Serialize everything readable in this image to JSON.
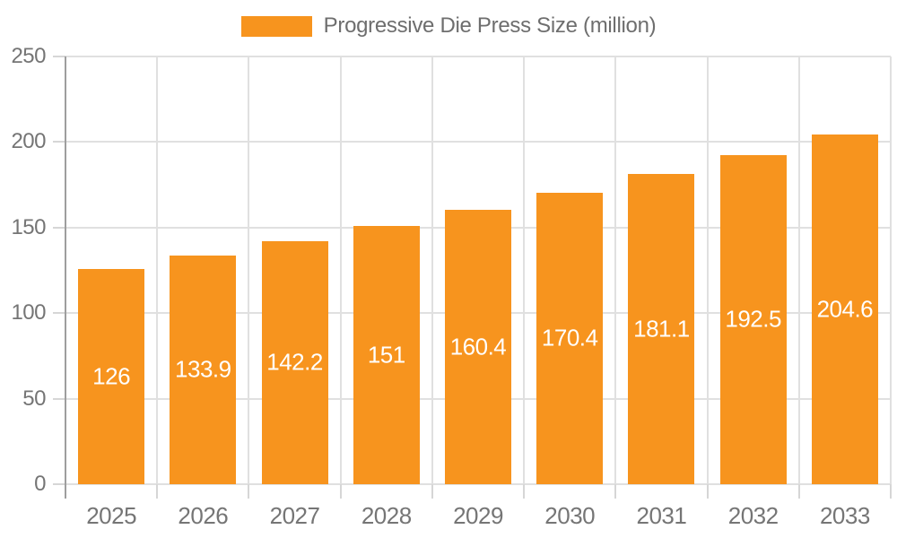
{
  "chart_data": {
    "type": "bar",
    "legend_label": "Progressive Die Press Size (million)",
    "categories": [
      "2025",
      "2026",
      "2027",
      "2028",
      "2029",
      "2030",
      "2031",
      "2032",
      "2033"
    ],
    "values": [
      126,
      133.9,
      142.2,
      151,
      160.4,
      170.4,
      181.1,
      192.5,
      204.6
    ],
    "value_labels": [
      "126",
      "133.9",
      "142.2",
      "151",
      "160.4",
      "170.4",
      "181.1",
      "192.5",
      "204.6"
    ],
    "xlabel": "",
    "ylabel": "",
    "ylim": [
      0,
      250
    ],
    "yticks": [
      0,
      50,
      100,
      150,
      200,
      250
    ],
    "grid": true,
    "legend_position": "top-center",
    "bar_label_position": "inside-center",
    "colors": {
      "bar": "#F7941E",
      "value_label": "#FFFFFF",
      "axis_text": "#757575",
      "legend_text": "#6E6E6E",
      "grid_line": "#E0E0E0",
      "axis_line": "#9E9E9E",
      "tick_line": "#D6D6D6",
      "background": "#FFFFFF"
    }
  }
}
